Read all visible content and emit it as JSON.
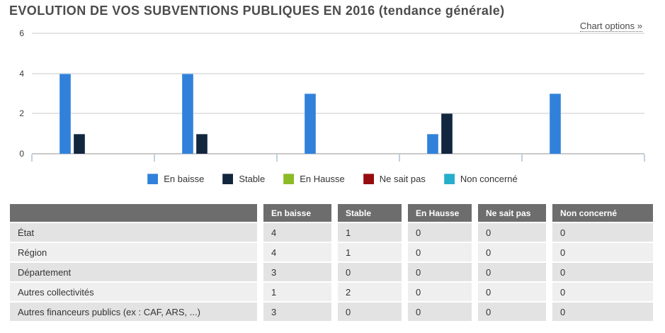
{
  "title": "EVOLUTION DE VOS SUBVENTIONS PUBLIQUES EN 2016 (tendance générale)",
  "chart_options_label": "Chart options »",
  "chart_data": {
    "type": "bar",
    "title": "EVOLUTION DE VOS SUBVENTIONS PUBLIQUES EN 2016 (tendance générale)",
    "categories": [
      "État",
      "Région",
      "Département",
      "Autres collectivités",
      "Autres financeurs publics (ex : CAF, ARS, ...)"
    ],
    "series": [
      {
        "name": "En baisse",
        "color": "#3181db",
        "values": [
          4,
          4,
          3,
          1,
          3
        ]
      },
      {
        "name": "Stable",
        "color": "#12263e",
        "values": [
          1,
          1,
          0,
          2,
          0
        ]
      },
      {
        "name": "En Hausse",
        "color": "#8dbb25",
        "values": [
          0,
          0,
          0,
          0,
          0
        ]
      },
      {
        "name": "Ne sait pas",
        "color": "#960b0e",
        "values": [
          0,
          0,
          0,
          0,
          0
        ]
      },
      {
        "name": "Non concerné",
        "color": "#26aecb",
        "values": [
          0,
          0,
          0,
          0,
          0
        ]
      }
    ],
    "xlabel": "",
    "ylabel": "",
    "ylim": [
      0,
      6
    ],
    "yticks": [
      0,
      2,
      4,
      6
    ],
    "grid": true,
    "legend_position": "bottom",
    "x_tick_labels_shown": false
  },
  "table": {
    "columns": [
      "",
      "En baisse",
      "Stable",
      "En Hausse",
      "Ne sait pas",
      "Non concerné"
    ],
    "rows": [
      {
        "label": "État",
        "values": [
          "4",
          "1",
          "0",
          "0",
          "0"
        ]
      },
      {
        "label": "Région",
        "values": [
          "4",
          "1",
          "0",
          "0",
          "0"
        ]
      },
      {
        "label": "Département",
        "values": [
          "3",
          "0",
          "0",
          "0",
          "0"
        ]
      },
      {
        "label": "Autres collectivités",
        "values": [
          "1",
          "2",
          "0",
          "0",
          "0"
        ]
      },
      {
        "label": "Autres financeurs publics (ex : CAF, ARS, ...)",
        "values": [
          "3",
          "0",
          "0",
          "0",
          "0"
        ]
      }
    ]
  }
}
